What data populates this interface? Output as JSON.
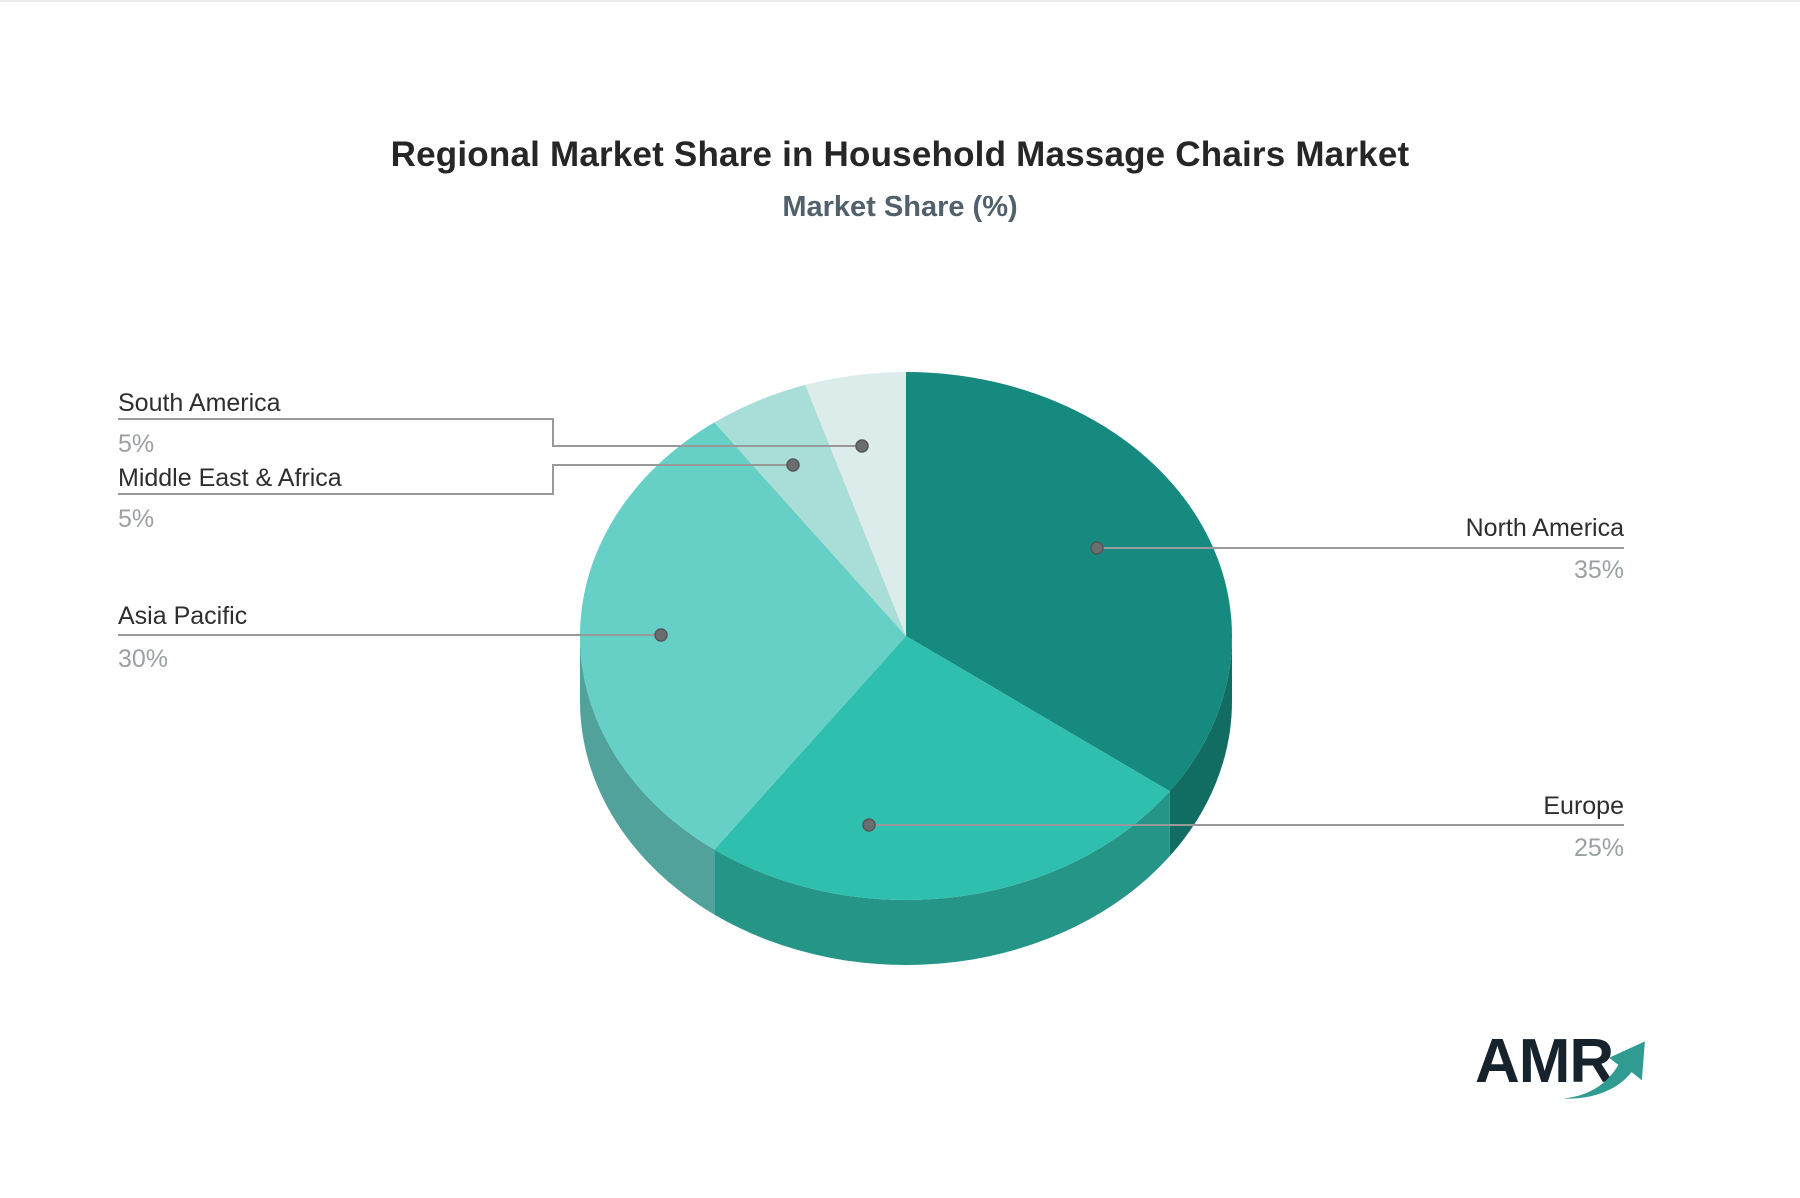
{
  "title": "Regional Market Share in Household Massage Chairs Market",
  "subtitle": "Market Share (%)",
  "logo": {
    "text": "AMR",
    "text_color": "#16222c",
    "arrow_color": "#2f9b91"
  },
  "chart_data": {
    "type": "pie",
    "style": "3d",
    "title": "Regional Market Share in Household Massage Chairs Market",
    "subtitle": "Market Share (%)",
    "unit": "%",
    "start_angle_deg": 0,
    "direction": "clockwise",
    "legend_position": "none",
    "slices": [
      {
        "label": "North America",
        "value": 35,
        "pct_label": "35%",
        "color": "#168a7e",
        "label_side": "right"
      },
      {
        "label": "Europe",
        "value": 25,
        "pct_label": "25%",
        "color": "#2fbfae",
        "label_side": "right"
      },
      {
        "label": "Asia Pacific",
        "value": 30,
        "pct_label": "30%",
        "color": "#66d0c6",
        "label_side": "left"
      },
      {
        "label": "Middle East & Africa",
        "value": 5,
        "pct_label": "5%",
        "color": "#a9ded8",
        "label_side": "left"
      },
      {
        "label": "South America",
        "value": 5,
        "pct_label": "5%",
        "color": "#dcecea",
        "label_side": "left"
      }
    ],
    "leader_line_color": "#97999b",
    "leader_dot_color": "#6b6d6f",
    "label_color": "#2e2e2e",
    "pct_color": "#9ba1a3"
  }
}
